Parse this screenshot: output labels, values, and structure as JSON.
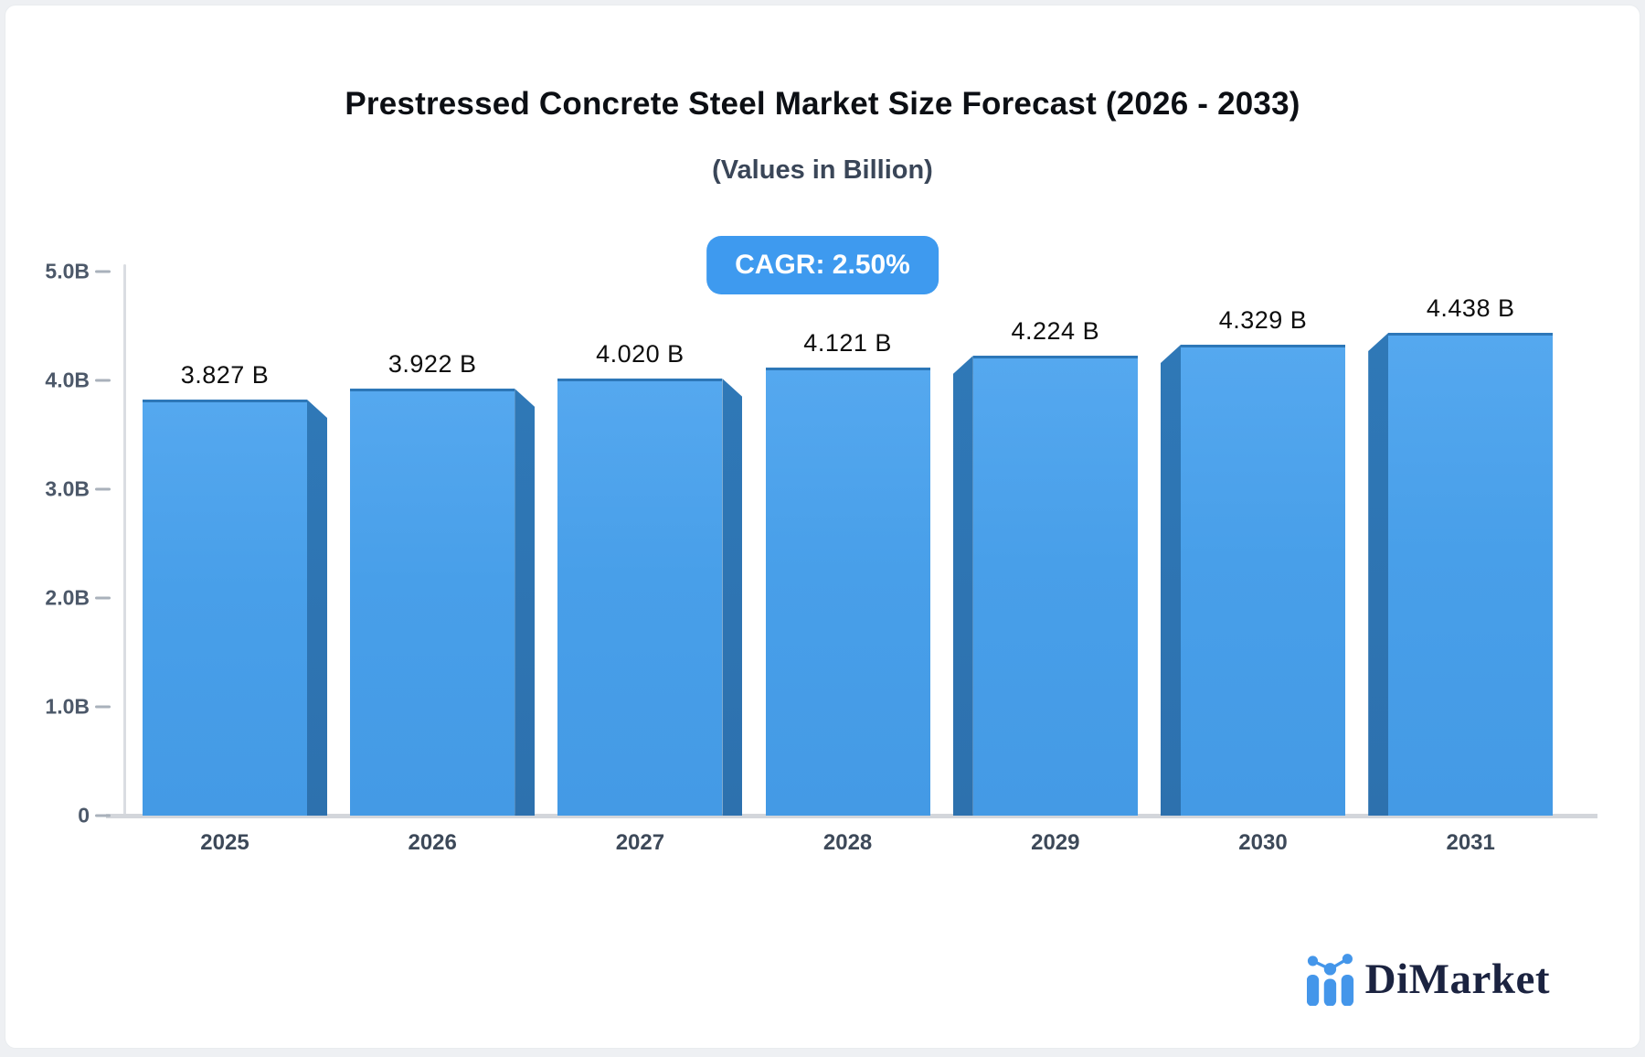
{
  "page": {
    "background_color": "#eef0f3",
    "card_background": "#ffffff"
  },
  "chart_data": {
    "type": "bar",
    "title": "Prestressed Concrete Steel Market Size Forecast (2026 - 2033)",
    "subtitle": "(Values in Billion)",
    "badge_label": "CAGR: 2.50%",
    "categories": [
      "2025",
      "2026",
      "2027",
      "2028",
      "2029",
      "2030",
      "2031"
    ],
    "values": [
      3.827,
      3.922,
      4.02,
      4.121,
      4.224,
      4.329,
      4.438
    ],
    "value_labels": [
      "3.827 B",
      "3.922 B",
      "4.020 B",
      "4.121 B",
      "4.224 B",
      "4.329 B",
      "4.438 B"
    ],
    "ylim": [
      0,
      5.0
    ],
    "y_ticks": [
      {
        "label": "0",
        "value": 0
      },
      {
        "label": "1.0B",
        "value": 1
      },
      {
        "label": "2.0B",
        "value": 2
      },
      {
        "label": "3.0B",
        "value": 3
      },
      {
        "label": "4.0B",
        "value": 4
      },
      {
        "label": "5.0B",
        "value": 5
      }
    ],
    "grid": false,
    "legend": null,
    "layout_hints": "3D extruded bars; side faces angle toward center bar; value labels above bars; no gridlines",
    "colors": {
      "bar_face": "#489fe9",
      "bar_face_highlight": "#55a8ef",
      "bar_side": "#2e74b2",
      "bar_top_edge": "#2d77b8",
      "badge_background": "#3e9aef",
      "badge_text": "#ffffff",
      "axis_line": "#d3d6db",
      "tick_mark": "#a9b1bb",
      "y_label_text": "#4c5869",
      "x_label_text": "#3d4959",
      "title_text": "#0c0f14",
      "subtitle_text": "#3a4658",
      "value_label_text": "#0e0e0e"
    }
  },
  "footer": {
    "brand_name": "DiMarket",
    "logo_icon": "mini-bar-chart-icon",
    "logo_color": "#4496ea",
    "brand_text_color": "#1b2340"
  }
}
